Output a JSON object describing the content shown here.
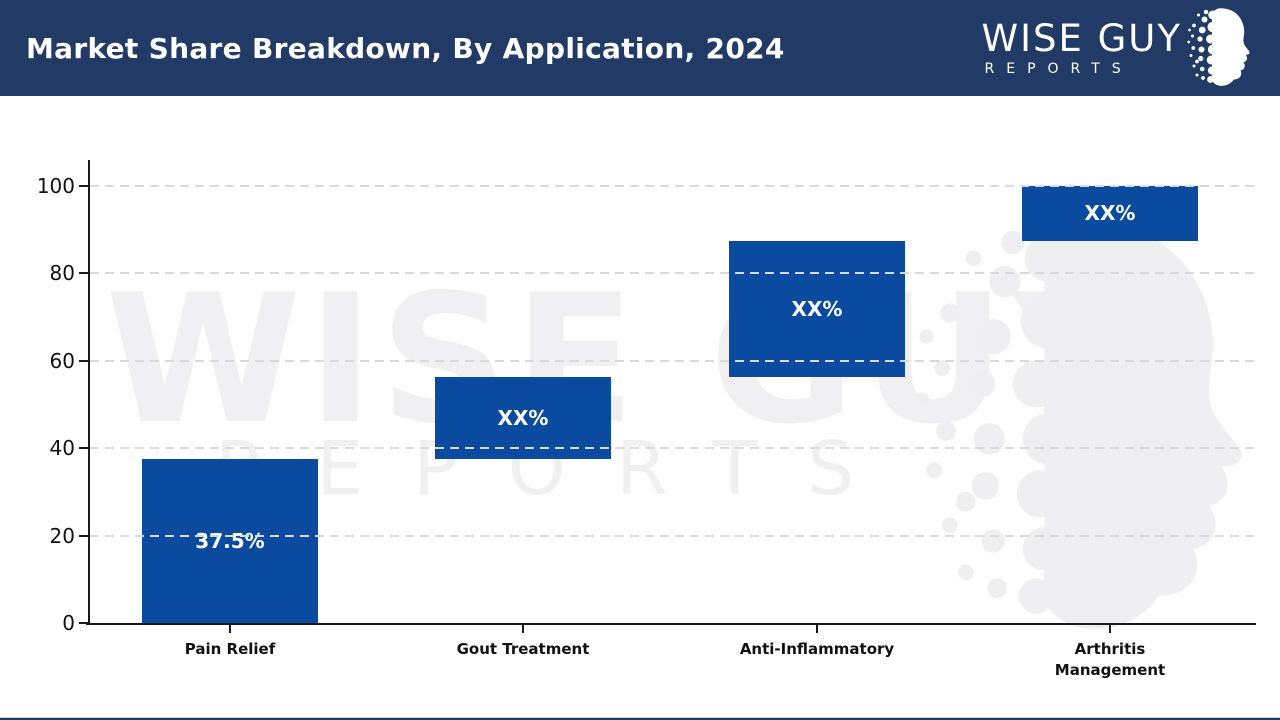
{
  "header": {
    "title": "Market Share Breakdown, By Application, 2024",
    "logo": {
      "line1": "WISE GUY",
      "line2": "REPORTS"
    }
  },
  "watermark": {
    "line1": "WISE GUY",
    "line2": "REPORTS"
  },
  "chart_data": {
    "type": "bar",
    "subtype": "waterfall",
    "title": "Market Share Breakdown, By Application, 2024",
    "categories": [
      "Pain Relief",
      "Gout Treatment",
      "Anti-Inflammatory",
      "Arthritis Management"
    ],
    "series": [
      {
        "name": "Market Share (%)",
        "segment_values": [
          37.5,
          18.75,
          31.25,
          12.5
        ],
        "starts": [
          0,
          37.5,
          56.25,
          87.5
        ],
        "ends": [
          37.5,
          56.25,
          87.5,
          100
        ]
      }
    ],
    "bar_labels": [
      "37.5%",
      "XX%",
      "XX%",
      "XX%"
    ],
    "xlabel": "",
    "ylabel": "",
    "yticks": [
      0,
      20,
      40,
      60,
      80,
      100
    ],
    "ylim": [
      0,
      105
    ],
    "grid": "horizontal-dashed",
    "legend": "none",
    "bar_color": "#0a4ba0",
    "bar_label_color": "#ffffff"
  },
  "colors": {
    "header_bg": "#213a66",
    "bar": "#0a4ba0",
    "gridline": "#d9d9d9",
    "axis": "#1a1a1a",
    "watermark": "#f0f0f3"
  }
}
